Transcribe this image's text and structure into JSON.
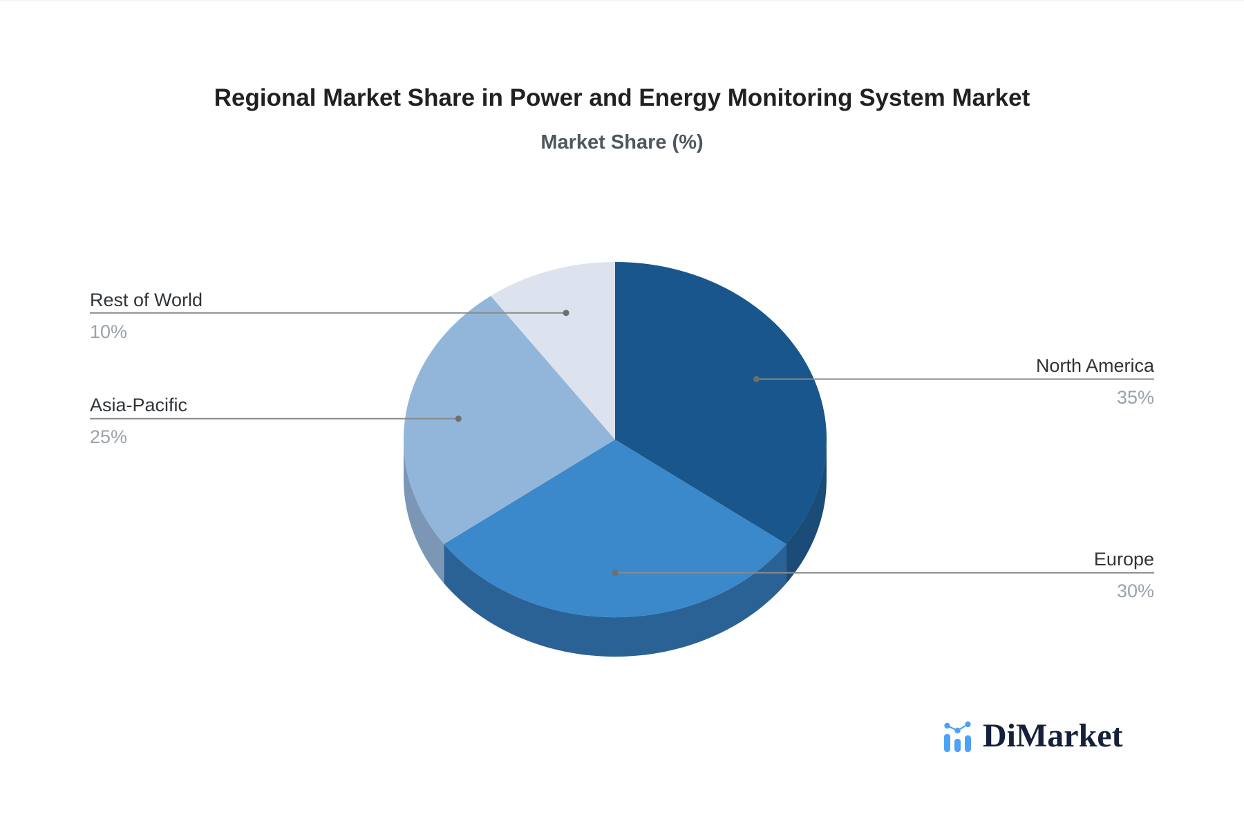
{
  "chart_data": {
    "type": "pie",
    "effect": "3d",
    "title": "Regional Market Share in Power and Energy Monitoring System Market",
    "subtitle": "Market Share (%)",
    "unit": "%",
    "start_angle_deg": 0,
    "direction": "clockwise",
    "legend": "none",
    "slices": [
      {
        "label": "North America",
        "value": 35,
        "display": "35%",
        "color": "#18568C",
        "side_color": "#1B4B77"
      },
      {
        "label": "Europe",
        "value": 30,
        "display": "30%",
        "color": "#3B88CB",
        "side_color": "#2B6296"
      },
      {
        "label": "Asia-Pacific",
        "value": 25,
        "display": "25%",
        "color": "#92B6D9",
        "side_color": "#7B97B5"
      },
      {
        "label": "Rest of World",
        "value": 10,
        "display": "10%",
        "color": "#DDE3EE",
        "side_color": "#B9C4D4"
      }
    ],
    "leader_line_color": "#8A8A8A",
    "leader_dot_color": "#6E6E6E",
    "label_color": "#2F3438",
    "pct_color": "#9AA2AA",
    "title_color": "#212121",
    "subtitle_color": "#4E575F"
  },
  "logo": {
    "text": "DiMarket",
    "icon": "bar-chart-logo-icon",
    "icon_color": "#4CA2F6",
    "text_color": "#15203A"
  }
}
